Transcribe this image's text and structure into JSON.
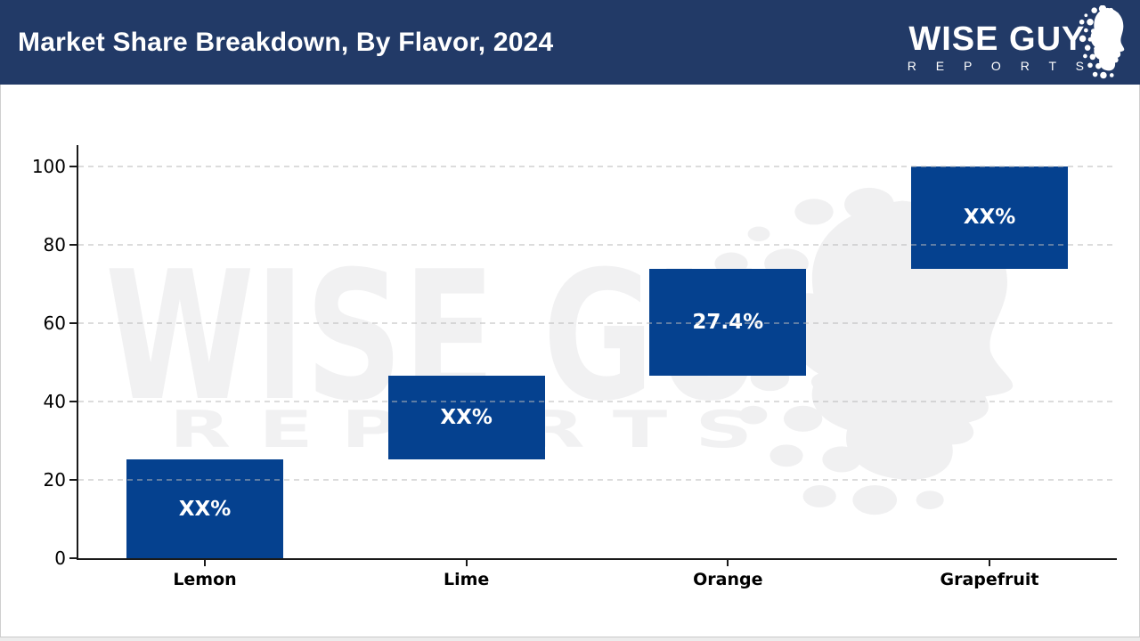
{
  "header": {
    "title": "Market Share Breakdown, By Flavor, 2024",
    "logo": {
      "line1": "WISE GUY",
      "line2": "R E P O R T S"
    }
  },
  "watermark": {
    "line1": "WISE GU",
    "line2": "R E P O R T S"
  },
  "colors": {
    "header_bg": "#223a67",
    "bar": "#05418f",
    "axis": "#1a1a1a",
    "gridline": "#e2e2e2",
    "watermark": "#f1f1f2",
    "logo_text": "#ffffff"
  },
  "chart_data": {
    "type": "bar",
    "subtype": "waterfall",
    "title": "Market Share Breakdown, By Flavor, 2024",
    "categories": [
      "Lemon",
      "Lime",
      "Orange",
      "Grapefruit"
    ],
    "segments": [
      {
        "category": "Lemon",
        "start": 0,
        "end": 25.2,
        "label": "XX%"
      },
      {
        "category": "Lime",
        "start": 25.2,
        "end": 46.5,
        "label": "XX%"
      },
      {
        "category": "Orange",
        "start": 46.5,
        "end": 73.9,
        "label": "27.4%"
      },
      {
        "category": "Grapefruit",
        "start": 73.9,
        "end": 100,
        "label": "XX%"
      }
    ],
    "yticks": [
      0,
      20,
      40,
      60,
      80,
      100
    ],
    "ylim": [
      0,
      105
    ],
    "xlabel": "",
    "ylabel": "",
    "grid": "horizontal-dashed-over-bars",
    "legend": "none"
  }
}
